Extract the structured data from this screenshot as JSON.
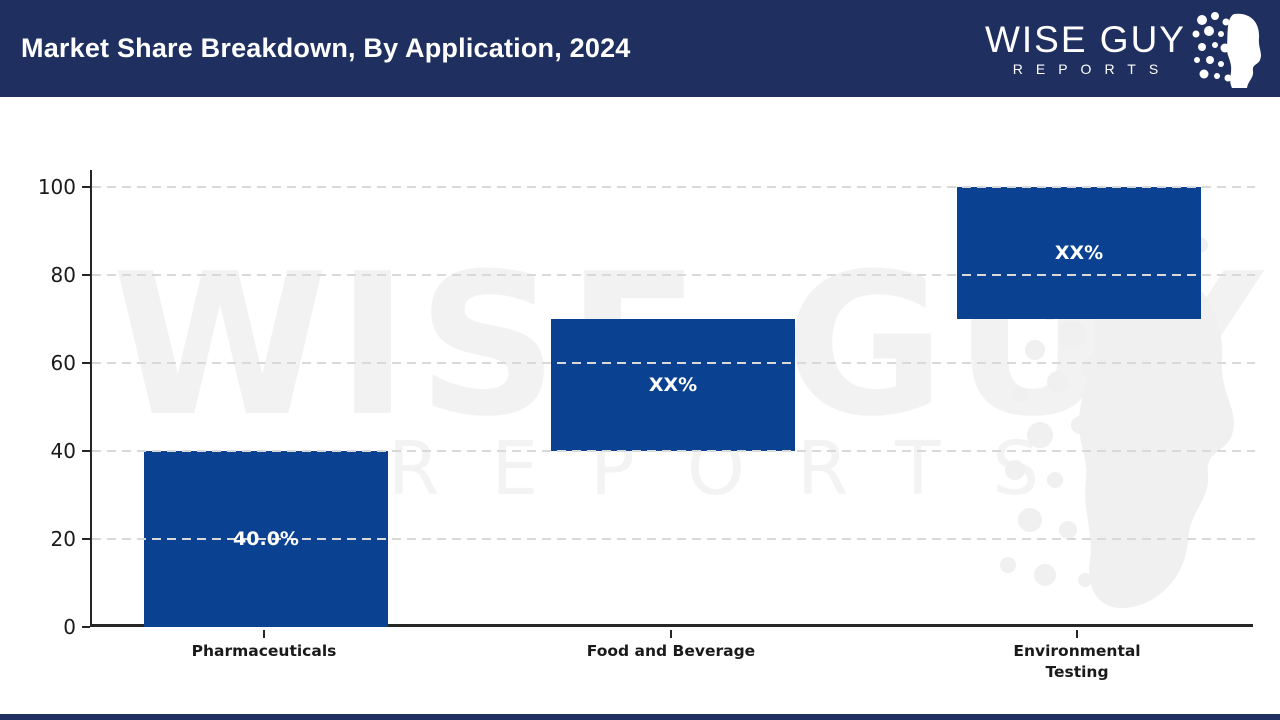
{
  "header": {
    "title": "Market Share Breakdown, By Application, 2024",
    "logo": {
      "name": "WISE GUY",
      "sub": "REPORTS"
    }
  },
  "watermark": {
    "line1": "WISE GUY",
    "line2": "REPORTS"
  },
  "colors": {
    "header_bg": "#1f3060",
    "bar": "#0a4190",
    "grid": "#d9d9d9",
    "axis": "#262626",
    "bar_label": "#ffffff",
    "watermark": "#f2f2f2"
  },
  "chart_data": {
    "type": "bar",
    "variant": "floating-segment (waterfall style market share)",
    "title": "Market Share Breakdown, By Application, 2024",
    "categories": [
      "Pharmaceuticals",
      "Food and Beverage",
      "Environmental Testing"
    ],
    "segments": [
      {
        "category": "Pharmaceuticals",
        "start": 0,
        "end": 40,
        "label": "40.0%"
      },
      {
        "category": "Food and Beverage",
        "start": 40,
        "end": 70,
        "label": "XX%"
      },
      {
        "category": "Environmental Testing",
        "start": 70,
        "end": 100,
        "label": "XX%"
      }
    ],
    "ylim": [
      0,
      100
    ],
    "yticks": [
      0,
      20,
      40,
      60,
      80,
      100
    ],
    "xlabel": "",
    "ylabel": "",
    "grid": "horizontal dashed",
    "legend": "none",
    "bar_color": "#0a4190"
  }
}
